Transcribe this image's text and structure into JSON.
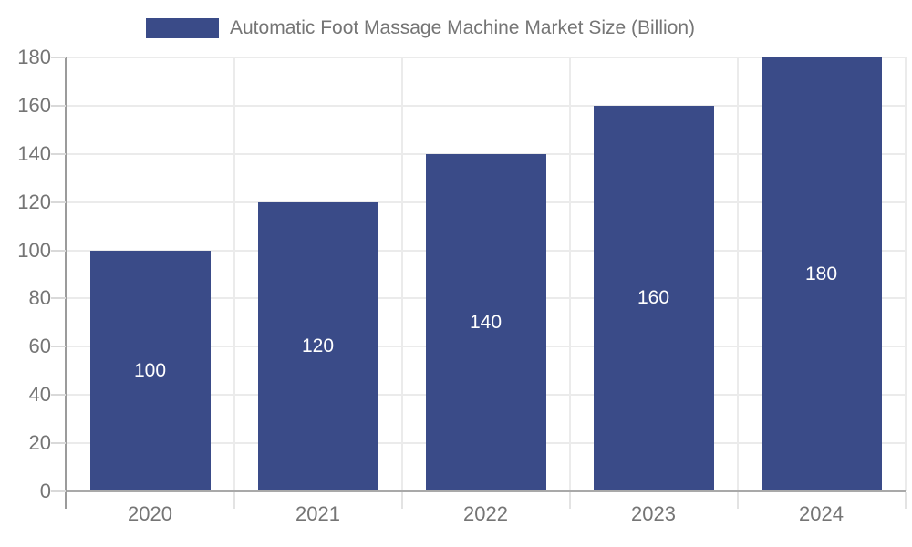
{
  "legend": {
    "label": "Automatic Foot Massage Machine Market Size (Billion)"
  },
  "chart_data": {
    "type": "bar",
    "title": "Automatic Foot Massage Machine Market Size (Billion)",
    "categories": [
      "2020",
      "2021",
      "2022",
      "2023",
      "2024"
    ],
    "series": [
      {
        "name": "Automatic Foot Massage Machine Market Size (Billion)",
        "values": [
          100,
          120,
          140,
          160,
          180
        ]
      }
    ],
    "bar_value_labels": [
      "100",
      "120",
      "140",
      "160",
      "180"
    ],
    "xlabel": "",
    "ylabel": "",
    "ylim": [
      0,
      180
    ],
    "ytick_step": 20,
    "ytick_labels": [
      "0",
      "20",
      "40",
      "60",
      "80",
      "100",
      "120",
      "140",
      "160",
      "180"
    ],
    "grid": true,
    "legend_position": "top-center"
  },
  "colors": {
    "bar": "#3A4B88",
    "grid": "#ebebeb",
    "x_axis": "#a9a9a9",
    "y_axis": "#9b9b9b",
    "tick_text": "#757575",
    "title_text": "#757575",
    "bar_label": "#ffffff",
    "background": "#ffffff"
  }
}
